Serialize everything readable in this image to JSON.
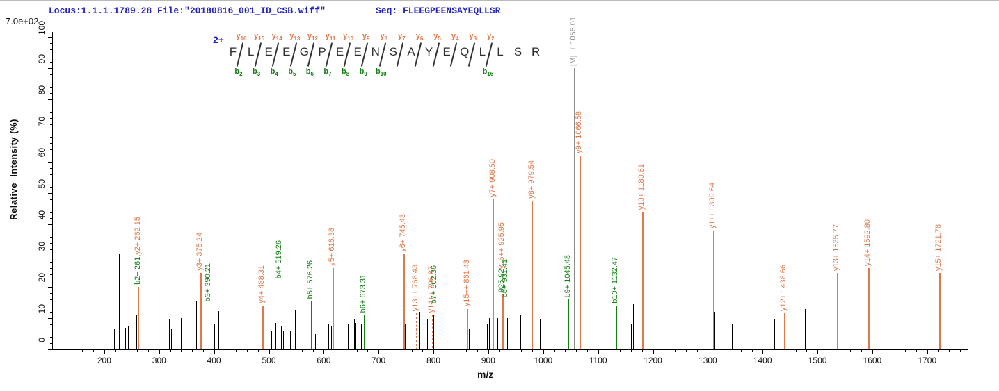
{
  "header": {
    "locus_file": "Locus:1.1.1.1789.28 File:\"20180816_001_ID_CSB.wiff\"",
    "seq_label": "Seq: FLEEGPEENSAYEQLLSR",
    "intensity_scale": "7.0e+02"
  },
  "colors": {
    "y_ion_orange": "#e0784a",
    "b_ion_green": "#137f13",
    "precursor_gray": "#8c8c8c",
    "peak_black": "#000000",
    "header_blue": "#2222c4"
  },
  "sequence_panel": {
    "charge": "2+",
    "residues": [
      "F",
      "L",
      "E",
      "E",
      "G",
      "P",
      "E",
      "E",
      "N",
      "S",
      "A",
      "Y",
      "E",
      "Q",
      "L",
      "L",
      "S",
      "R"
    ],
    "cleavages": [
      {
        "after": 1,
        "y": "y16",
        "b": "b2"
      },
      {
        "after": 2,
        "y": "y15",
        "b": "b3"
      },
      {
        "after": 3,
        "y": "y14",
        "b": "b4"
      },
      {
        "after": 4,
        "y": "y13",
        "b": "b5"
      },
      {
        "after": 5,
        "y": "y12",
        "b": "b6"
      },
      {
        "after": 6,
        "y": "y11",
        "b": "b7"
      },
      {
        "after": 7,
        "y": "y10",
        "b": "b8"
      },
      {
        "after": 8,
        "y": "y9",
        "b": "b9"
      },
      {
        "after": 9,
        "y": "y8",
        "b": "b10"
      },
      {
        "after": 10,
        "y": "y7",
        "b": null
      },
      {
        "after": 11,
        "y": "y6",
        "b": null
      },
      {
        "after": 12,
        "y": "y5",
        "b": null
      },
      {
        "after": 13,
        "y": "y4",
        "b": null
      },
      {
        "after": 14,
        "y": "y3",
        "b": null
      },
      {
        "after": 15,
        "y": "y2",
        "b": "b16"
      }
    ]
  },
  "chart_data": {
    "type": "bar",
    "subtype": "ms2-fragmentation-spectrum",
    "title": "Locus:1.1.1.1789.28 File:\"20180816_001_ID_CSB.wiff\"  Seq: FLEEGPEENSAYEQLLSR",
    "xlabel": "m/z",
    "ylabel": "Relative  Intensity (%)",
    "intensity_scale": "7.0e+02",
    "xlim": [
      105,
      1770
    ],
    "ylim": [
      0,
      100
    ],
    "x_major_ticks": [
      200,
      300,
      400,
      500,
      600,
      700,
      800,
      900,
      1000,
      1100,
      1200,
      1300,
      1400,
      1500,
      1600,
      1700
    ],
    "x_minor_step": 20,
    "y_major_ticks": [
      0,
      10,
      20,
      30,
      40,
      50,
      60,
      70,
      80,
      90,
      100
    ],
    "y_minor_step": 2,
    "grid": false,
    "annotated_peaks": [
      {
        "ion": "y2+",
        "mz": 262.15,
        "intensity": 20,
        "color": "orange",
        "style": "solid",
        "label": "y2+ 262.15",
        "label_prefix": "b2+ 261,",
        "label_prefix_color": "green"
      },
      {
        "ion": "y3+",
        "mz": 375.24,
        "intensity": 24.5,
        "color": "orange",
        "style": "solid",
        "label": "y3+ 375.24"
      },
      {
        "ion": "b3+",
        "mz": 390.21,
        "intensity": 14.5,
        "color": "green",
        "style": "solid",
        "label": "b3+ 390.21"
      },
      {
        "ion": "y4+",
        "mz": 488.31,
        "intensity": 14,
        "color": "orange",
        "style": "solid",
        "label": "y4+ 488.31"
      },
      {
        "ion": "b4+",
        "mz": 519.26,
        "intensity": 22,
        "color": "green",
        "style": "solid",
        "label": "b4+ 519.26"
      },
      {
        "ion": "b5+",
        "mz": 576.26,
        "intensity": 15.5,
        "color": "green",
        "style": "solid",
        "label": "b5+ 576.26"
      },
      {
        "ion": "y5+",
        "mz": 616.38,
        "intensity": 26,
        "color": "orange",
        "style": "solid",
        "label": "y5+ 616.38"
      },
      {
        "ion": "b6+",
        "mz": 673.31,
        "intensity": 11,
        "color": "green",
        "style": "solid",
        "label": "b6+ 673.31"
      },
      {
        "ion": "y6+",
        "mz": 745.43,
        "intensity": 30.5,
        "color": "orange",
        "style": "solid",
        "label": "y6+ 745.43"
      },
      {
        "ion": "y13++",
        "mz": 768.43,
        "intensity": 11.5,
        "color": "orange",
        "style": "dashed",
        "label": "y13++ 768.43"
      },
      {
        "ion": "y14++",
        "mz": 796.87,
        "intensity": 11,
        "color": "orange",
        "style": "dashed",
        "label": "y14++ 796.87"
      },
      {
        "ion": "b7+",
        "mz": 802.36,
        "intensity": 14,
        "color": "green",
        "style": "dashed",
        "label": "b7+ 802.36"
      },
      {
        "ion": "y15++",
        "mz": 861.43,
        "intensity": 13,
        "color": "orange",
        "style": "solid",
        "label": "y15++ 861.43"
      },
      {
        "ion": "y7+",
        "mz": 908.5,
        "intensity": 48,
        "color": "orange",
        "style": "solid",
        "label": "y7+ 908.50"
      },
      {
        "ion": "y16++",
        "mz": 925.95,
        "intensity": 17.5,
        "color": "orange",
        "style": "solid",
        "label": "y16++ 925.95",
        "label_prefix": "925.92",
        "label_prefix_color": "green"
      },
      {
        "ion": "b8+",
        "mz": 931.41,
        "intensity": 16,
        "color": "green",
        "style": "solid",
        "label": "b8+ 931.41"
      },
      {
        "ion": "y8+",
        "mz": 979.54,
        "intensity": 47.5,
        "color": "orange",
        "style": "solid",
        "label": "y8+ 979.54"
      },
      {
        "ion": "b9+",
        "mz": 1045.48,
        "intensity": 16,
        "color": "green",
        "style": "solid",
        "label": "b9+ 1045.48"
      },
      {
        "ion": "[M]++",
        "mz": 1056.01,
        "intensity": 90,
        "color": "gray",
        "style": "solid",
        "label": "[M]++ 1056.01"
      },
      {
        "ion": "y9+",
        "mz": 1066.58,
        "intensity": 62,
        "color": "orange",
        "style": "solid",
        "label": "y9+ 1066.58"
      },
      {
        "ion": "b10+",
        "mz": 1132.47,
        "intensity": 14,
        "color": "green",
        "style": "solid",
        "label": "b10+ 1132.47"
      },
      {
        "ion": "y10+",
        "mz": 1180.61,
        "intensity": 44,
        "color": "orange",
        "style": "solid",
        "label": "y10+ 1180.61"
      },
      {
        "ion": "y11+",
        "mz": 1309.64,
        "intensity": 38,
        "color": "orange",
        "style": "solid",
        "label": "y11+ 1309.64"
      },
      {
        "ion": "y12+",
        "mz": 1438.66,
        "intensity": 11.5,
        "color": "orange",
        "style": "solid",
        "label": "y12+ 1438.66"
      },
      {
        "ion": "y13+",
        "mz": 1535.77,
        "intensity": 24.5,
        "color": "orange",
        "style": "solid",
        "label": "y13+ 1535.77"
      },
      {
        "ion": "y14+",
        "mz": 1592.8,
        "intensity": 26,
        "color": "orange",
        "style": "solid",
        "label": "y14+ 1592.80"
      },
      {
        "ion": "y15+",
        "mz": 1721.78,
        "intensity": 24.5,
        "color": "orange",
        "style": "solid",
        "label": "y15+ 1721.78"
      }
    ],
    "unlabeled_peaks": [
      [
        120,
        9
      ],
      [
        218,
        6.5
      ],
      [
        227,
        30.5
      ],
      [
        238,
        7
      ],
      [
        243,
        7.3
      ],
      [
        258,
        11
      ],
      [
        286,
        11
      ],
      [
        318,
        9.5
      ],
      [
        322,
        6.5
      ],
      [
        340,
        10
      ],
      [
        353,
        8
      ],
      [
        368,
        15.5
      ],
      [
        374,
        8
      ],
      [
        394,
        16
      ],
      [
        400,
        8.3
      ],
      [
        408,
        12.3
      ],
      [
        415,
        13
      ],
      [
        441,
        8.5
      ],
      [
        445,
        7
      ],
      [
        470,
        5.5
      ],
      [
        505,
        6
      ],
      [
        512,
        8.5
      ],
      [
        522,
        7.5
      ],
      [
        526,
        6
      ],
      [
        529,
        6
      ],
      [
        539,
        6
      ],
      [
        548,
        12.5
      ],
      [
        584,
        5
      ],
      [
        595,
        8
      ],
      [
        609,
        8
      ],
      [
        613,
        7.5
      ],
      [
        627,
        7.5
      ],
      [
        640,
        8
      ],
      [
        644,
        8
      ],
      [
        655,
        9.5
      ],
      [
        658,
        8.5
      ],
      [
        668,
        8
      ],
      [
        678,
        9
      ],
      [
        682,
        9
      ],
      [
        728,
        17
      ],
      [
        748,
        8
      ],
      [
        757,
        9.5
      ],
      [
        775,
        12
      ],
      [
        788,
        9.5
      ],
      [
        800,
        11
      ],
      [
        836,
        11
      ],
      [
        864,
        6.5
      ],
      [
        897,
        8
      ],
      [
        901,
        10
      ],
      [
        916,
        10
      ],
      [
        925,
        15.5
      ],
      [
        934,
        10
      ],
      [
        944,
        10.5
      ],
      [
        958,
        11
      ],
      [
        994,
        9.5
      ],
      [
        1160,
        8
      ],
      [
        1164,
        14.5
      ],
      [
        1294,
        15.5
      ],
      [
        1312,
        12
      ],
      [
        1320,
        7
      ],
      [
        1344,
        8.3
      ],
      [
        1349,
        9.7
      ],
      [
        1398,
        8
      ],
      [
        1421,
        9.7
      ],
      [
        1436,
        9
      ],
      [
        1477,
        13
      ]
    ]
  }
}
